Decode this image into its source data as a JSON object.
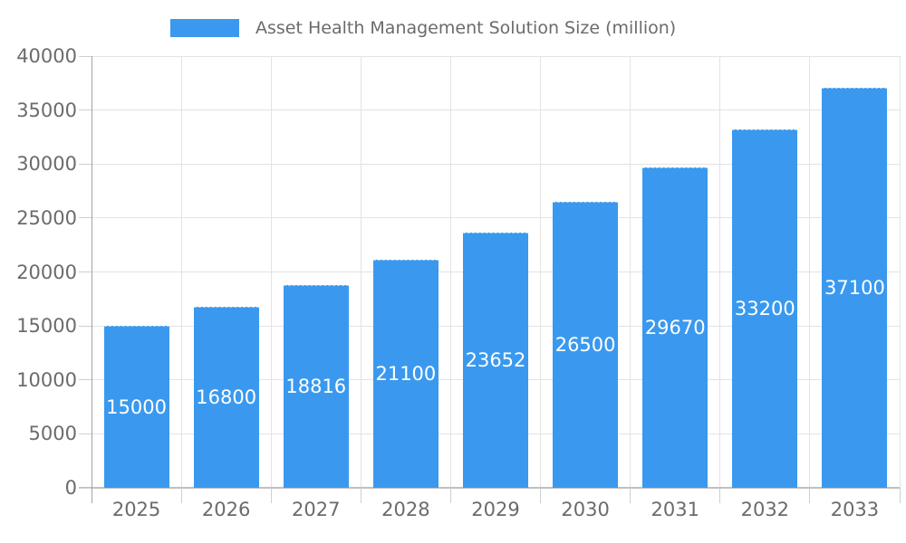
{
  "chart_data": {
    "type": "bar",
    "title": "Asset Health Management Solution Size (million)",
    "series_name": "Asset Health Management Solution Size (million)",
    "categories": [
      "2025",
      "2026",
      "2027",
      "2028",
      "2029",
      "2030",
      "2031",
      "2032",
      "2033"
    ],
    "values": [
      15000,
      16800,
      18816,
      21100,
      23652,
      26500,
      29670,
      33200,
      37100
    ],
    "xlabel": "",
    "ylabel": "",
    "ylim": [
      0,
      40000
    ],
    "ytick_step": 5000,
    "yticks": [
      0,
      5000,
      10000,
      15000,
      20000,
      25000,
      30000,
      35000,
      40000
    ],
    "grid": true,
    "legend_position": "top",
    "colors": {
      "bar": "#3A99EE",
      "bar_value_label": "#ffffff",
      "axis_text": "#6b6b6b",
      "legend_text": "#6b6b6b",
      "gridline": "#e3e3e3",
      "axis_line": "#a3a3a3",
      "tick": "#cfcfcf",
      "baseline": "#c0c0c0"
    }
  }
}
